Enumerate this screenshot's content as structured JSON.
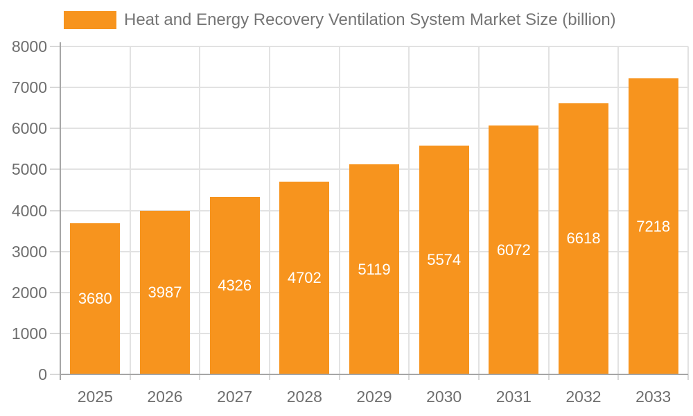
{
  "chart_data": {
    "type": "bar",
    "title": "Heat and Energy Recovery Ventilation System Market Size (billion)",
    "legend_position": "top",
    "categories": [
      "2025",
      "2026",
      "2027",
      "2028",
      "2029",
      "2030",
      "2031",
      "2032",
      "2033"
    ],
    "values": [
      3680,
      3987,
      4326,
      4702,
      5119,
      5574,
      6072,
      6618,
      7218
    ],
    "bar_value_labels": [
      "3680",
      "3987",
      "4326",
      "4702",
      "5119",
      "5574",
      "6072",
      "6618",
      "7218"
    ],
    "xlabel": "",
    "ylabel": "",
    "ylim": [
      0,
      8000
    ],
    "ytick_step": 1000,
    "ytick_labels": [
      "0",
      "1000",
      "2000",
      "3000",
      "4000",
      "5000",
      "6000",
      "7000",
      "8000"
    ],
    "grid": true
  },
  "style": {
    "bar_color": "#F7941E",
    "bar_value_color": "#FFFFFF",
    "title_color": "#757575",
    "axis_label_color": "#6E6E6E",
    "axis_line_color": "#A6A6A6",
    "grid_color": "#E2E2E2",
    "tick_color": "#D8D8D8",
    "background_color": "#FFFFFF"
  }
}
